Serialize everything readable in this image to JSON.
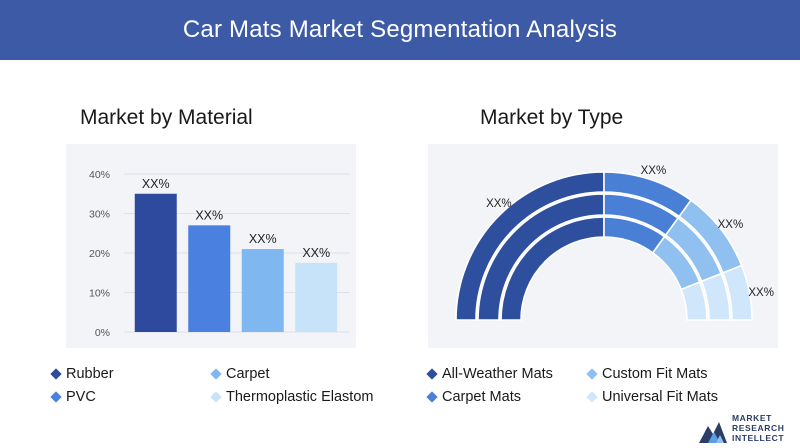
{
  "header": {
    "title": "Car Mats Market Segmentation Analysis"
  },
  "bar_section": {
    "title": "Market by Material"
  },
  "donut_section": {
    "title": "Market by Type"
  },
  "chart_data": [
    {
      "type": "bar",
      "title": "Market by Material",
      "categories": [
        "Rubber",
        "Carpet",
        "PVC",
        "Thermoplastic Elastom"
      ],
      "values": [
        35,
        27,
        21,
        17.5
      ],
      "data_labels": [
        "XX%",
        "XX%",
        "XX%",
        "XX%"
      ],
      "yticks": [
        "0%",
        "10%",
        "20%",
        "30%",
        "40%"
      ],
      "ylim": [
        0,
        40
      ],
      "colors": [
        "#2e4a9e",
        "#4a80e0",
        "#7fb8f0",
        "#c6e3fa"
      ],
      "grid": true,
      "legend": "bottom"
    },
    {
      "type": "pie",
      "subtype": "semi-donut",
      "title": "Market by Type",
      "categories": [
        "All-Weather Mats",
        "Carpet Mats",
        "Custom Fit Mats",
        "Universal Fit Mats"
      ],
      "values": [
        50,
        20,
        18,
        12
      ],
      "data_labels": [
        "XX%",
        "XX%",
        "XX%",
        "XX%"
      ],
      "colors": [
        "#2d4f9e",
        "#4a7fd6",
        "#8fc0f0",
        "#cfe6fb"
      ],
      "legend": "bottom"
    }
  ],
  "legend_material": [
    {
      "label": "Rubber",
      "color": "#2e4a9e"
    },
    {
      "label": "Carpet",
      "color": "#7fb8f0"
    },
    {
      "label": "PVC",
      "color": "#4a80e0"
    },
    {
      "label": "Thermoplastic Elastom",
      "color": "#c6e3fa"
    }
  ],
  "legend_type": [
    {
      "label": "All-Weather Mats",
      "color": "#2d4f9e"
    },
    {
      "label": "Custom Fit Mats",
      "color": "#8fc0f0"
    },
    {
      "label": "Carpet Mats",
      "color": "#4a7fd6"
    },
    {
      "label": "Universal Fit Mats",
      "color": "#cfe6fb"
    }
  ],
  "logo": {
    "line1": "MARKET",
    "line2": "RESEARCH",
    "line3": "INTELLECT"
  }
}
